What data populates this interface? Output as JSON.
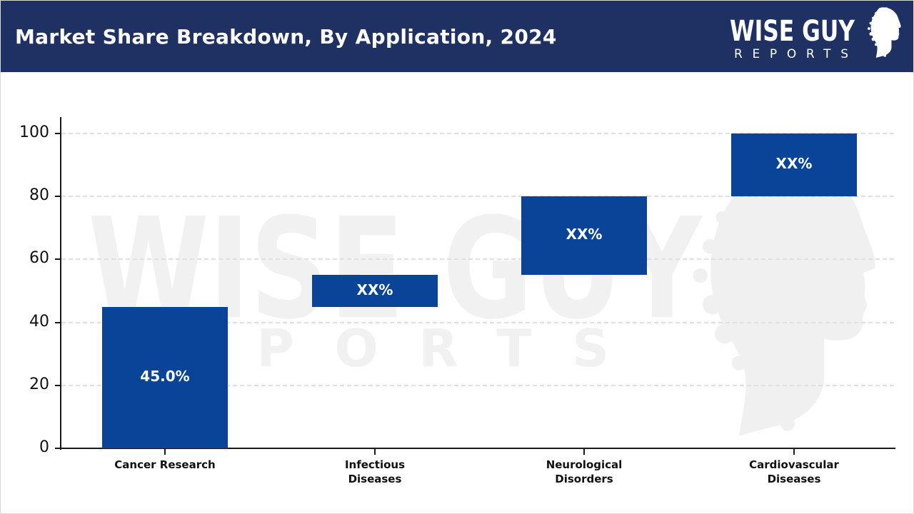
{
  "colors": {
    "header_bg": "#1f3163",
    "bar_fill": "#0a4499",
    "axis": "#1a1a1a",
    "grid": "#e0e0e0",
    "watermark": "#f1f1f1",
    "title_text": "#ffffff"
  },
  "header": {
    "title": "Market Share Breakdown, By Application, 2024",
    "logo": {
      "line1": "WISE GUY",
      "line2": "REPORTS"
    }
  },
  "watermark": {
    "line1": "WISE GUY",
    "line2": "REPORTS"
  },
  "chart_data": {
    "type": "bar",
    "subtype": "floating-range-bars",
    "title": "Market Share Breakdown, By Application, 2024",
    "categories": [
      [
        "Cancer Research"
      ],
      [
        "Infectious",
        "Diseases"
      ],
      [
        "Neurological",
        "Disorders"
      ],
      [
        "Cardiovascular",
        "Diseases"
      ]
    ],
    "series": [
      {
        "name": "Market Share",
        "ranges": [
          {
            "category": "Cancer Research",
            "start": 0,
            "end": 45,
            "label": "45.0%"
          },
          {
            "category": "Infectious Diseases",
            "start": 45,
            "end": 55,
            "label": "XX%"
          },
          {
            "category": "Neurological Disorders",
            "start": 55,
            "end": 80,
            "label": "XX%"
          },
          {
            "category": "Cardiovascular Diseases",
            "start": 80,
            "end": 100,
            "label": "XX%"
          }
        ]
      }
    ],
    "yticks": [
      0,
      20,
      40,
      60,
      80,
      100
    ],
    "ylim": [
      0,
      105
    ],
    "xlabel": "",
    "ylabel": "",
    "grid": "dashed-horizontal",
    "legend": "none"
  }
}
